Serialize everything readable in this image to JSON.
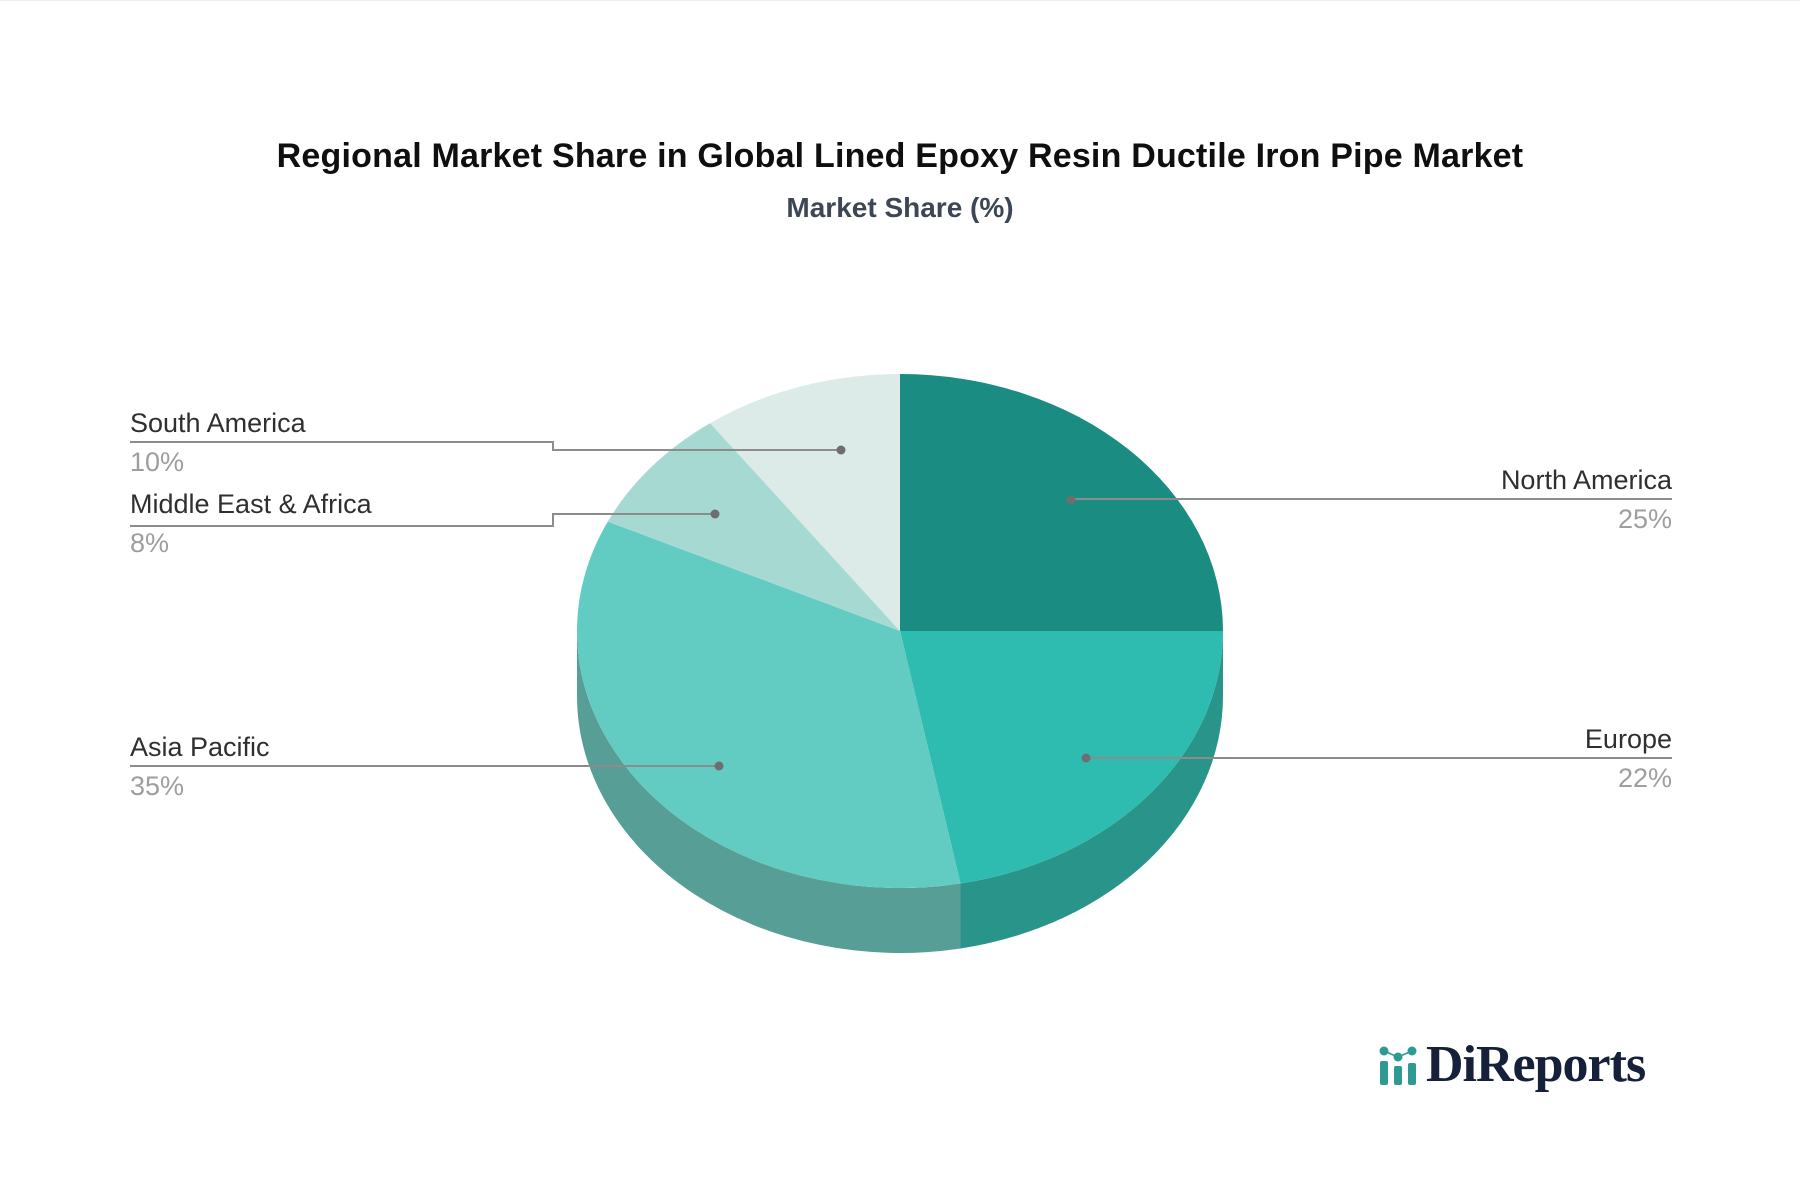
{
  "title": "Regional Market Share in Global Lined Epoxy Resin Ductile Iron Pipe Market",
  "subtitle": "Market Share (%)",
  "logo": {
    "text": "DiReports",
    "icon": "bar-chart-with-trend-dots-icon",
    "icon_color": "#2f9a92",
    "text_color": "#16203a"
  },
  "leader_style": {
    "line_color": "#8c8c8c",
    "dot_color": "#6e6e6e"
  },
  "chart_data": {
    "type": "pie",
    "title": "Regional Market Share in Global Lined Epoxy Resin Ductile Iron Pipe Market",
    "subtitle": "Market Share (%)",
    "unit": "%",
    "style": "3d-pie",
    "start_angle_deg": 0,
    "clockwise": true,
    "legend": "none",
    "label_style": "leader-lines",
    "segments": [
      {
        "key": "north-america",
        "label": "North America",
        "value": 25,
        "pct_label": "25%",
        "color": "#1b8c82"
      },
      {
        "key": "europe",
        "label": "Europe",
        "value": 22,
        "pct_label": "22%",
        "color": "#2fbcb0",
        "wall_color": "#28948a"
      },
      {
        "key": "asia-pacific",
        "label": "Asia Pacific",
        "value": 35,
        "pct_label": "35%",
        "color": "#63ccc2",
        "wall_color": "#579e97"
      },
      {
        "key": "middle-east-africa",
        "label": "Middle East & Africa",
        "value": 8,
        "pct_label": "8%",
        "color": "#a7d9d3"
      },
      {
        "key": "south-america",
        "label": "South America",
        "value": 10,
        "pct_label": "10%",
        "color": "#dcebe8"
      }
    ]
  }
}
